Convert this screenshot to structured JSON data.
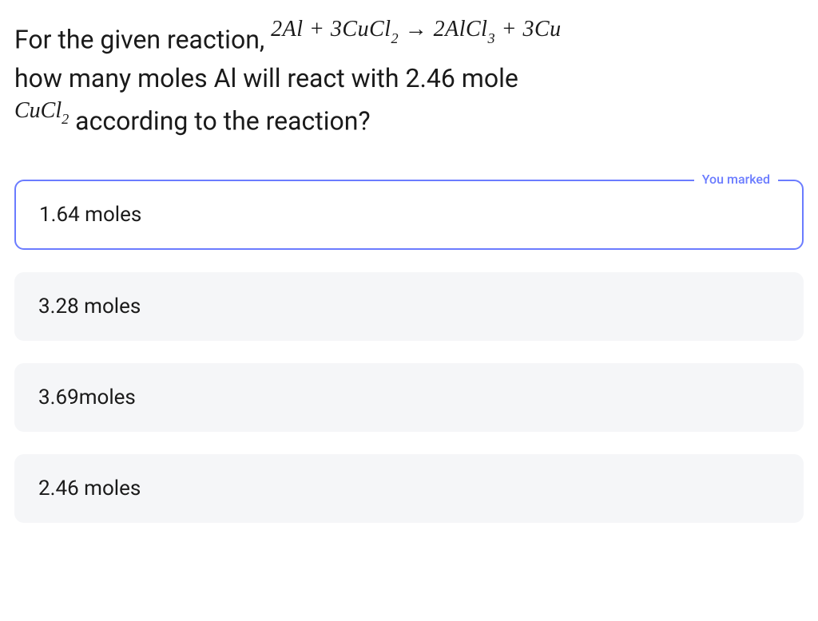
{
  "question": {
    "line1_pre": "For the given reaction, ",
    "equation": "2Al + 3CuCl₂ → 2AlCl₃ + 3Cu",
    "line2": "how many moles Al will react with 2.46 mole",
    "inline_formula": "CuCl₂",
    "line3_post": " according to the reaction?"
  },
  "marked_label": "You marked",
  "options": [
    {
      "text": "1.64 moles",
      "marked": true
    },
    {
      "text": "3.28 moles",
      "marked": false
    },
    {
      "text": "3.69moles",
      "marked": false
    },
    {
      "text": "2.46 moles",
      "marked": false
    }
  ],
  "styles": {
    "option_bg": "#f5f6f8",
    "option_marked_border": "#6b7cff",
    "marked_label_color": "#6b7cff",
    "body_bg": "#ffffff",
    "text_color": "#1a1a1a",
    "question_fontsize": 32,
    "option_fontsize": 26,
    "badge_fontsize": 16
  }
}
